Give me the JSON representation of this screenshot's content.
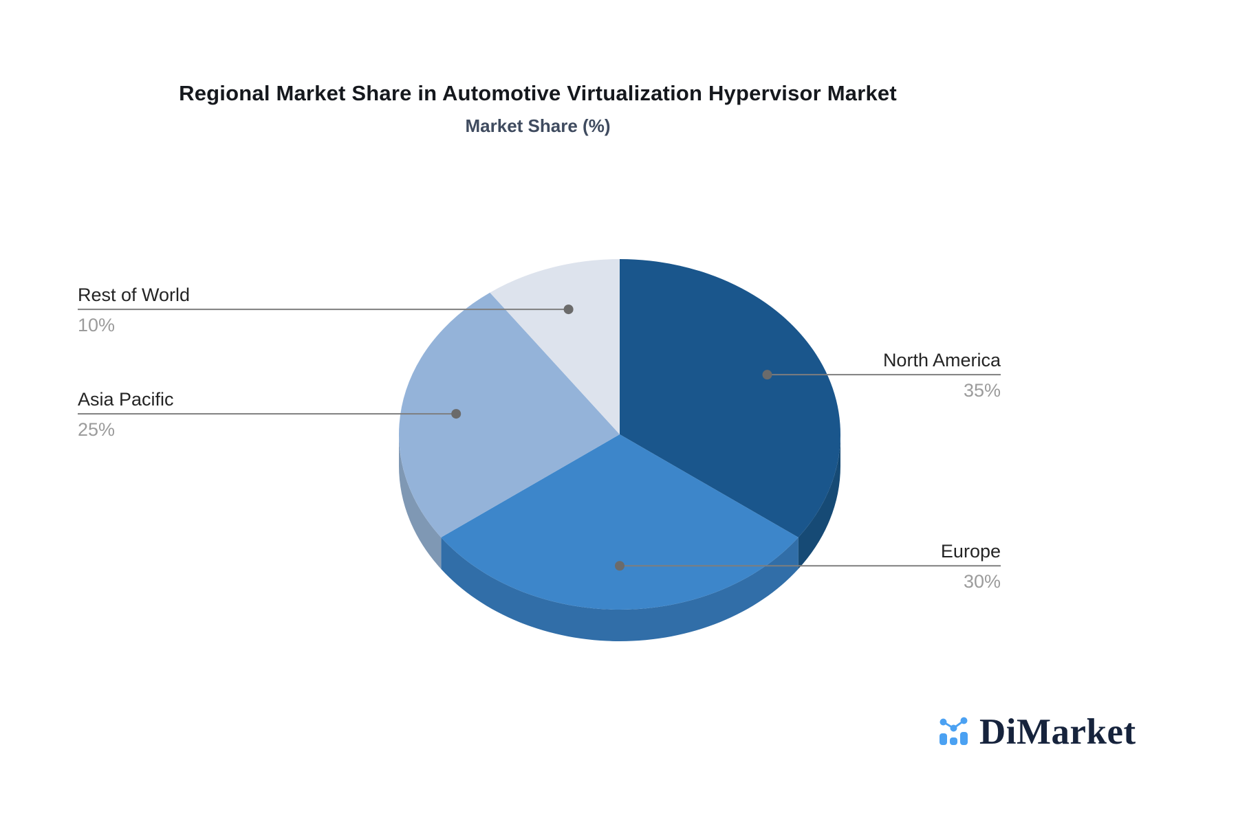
{
  "title": "Regional Market Share in Automotive Virtualization Hypervisor Market",
  "subtitle": "Market Share (%)",
  "brand": {
    "name": "DiMarket",
    "icon": "bar-line-chart-icon"
  },
  "chart_data": {
    "type": "pie",
    "title": "Regional Market Share in Automotive Virtualization Hypervisor Market",
    "subtitle": "Market Share (%)",
    "unit": "%",
    "effect_3d": true,
    "direction": "clockwise",
    "start_angle_deg": 0,
    "legend_position": "callouts",
    "categories": [
      "North America",
      "Europe",
      "Asia Pacific",
      "Rest of World"
    ],
    "values": [
      35,
      30,
      25,
      10
    ],
    "value_labels": [
      "35%",
      "30%",
      "25%",
      "10%"
    ]
  },
  "palette": {
    "slices": [
      "#1A568C",
      "#3D86CA",
      "#94B3D9",
      "#DDE3ED"
    ],
    "slice_sides": [
      "#164A75",
      "#316EA8",
      "#7F98B4",
      "#B8C2D2"
    ],
    "callout_line": "#7E7E7E",
    "callout_dot": "#6B6B6B",
    "label_text": "#242424",
    "value_text": "#9B9B9B",
    "title_text": "#15181D",
    "subtitle_text": "#3F4B5F",
    "brand_text": "#16233C",
    "brand_icon": "#4BA1F2"
  }
}
